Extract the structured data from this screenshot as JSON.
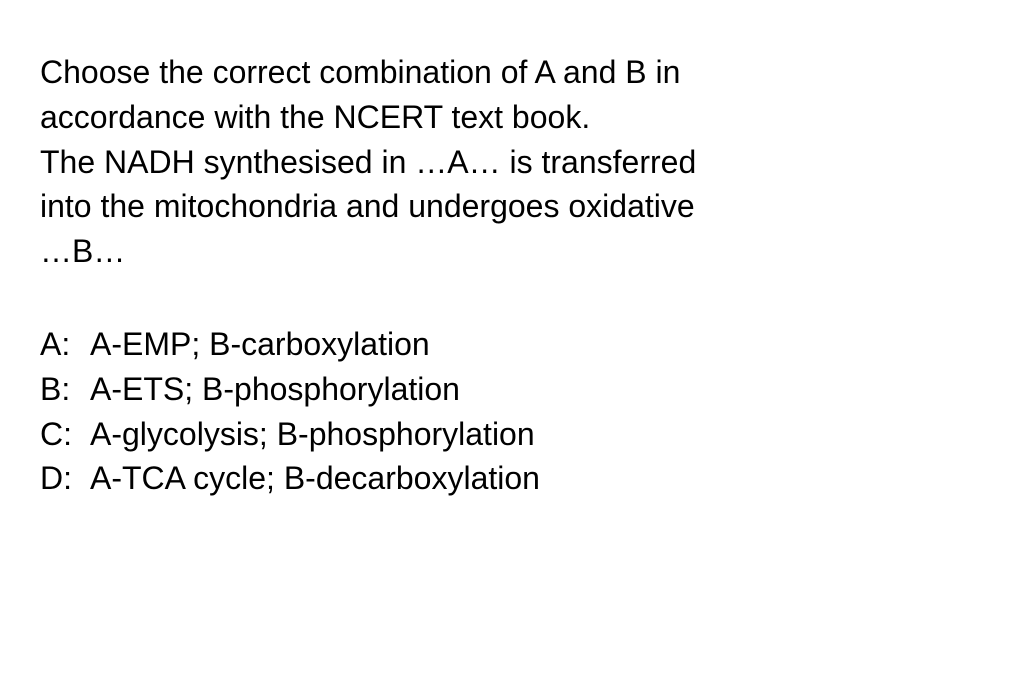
{
  "question": {
    "lines": [
      "Choose the correct combination of A and B in",
      "accordance with the NCERT text book.",
      "The NADH synthesised in …A… is transferred",
      "into the mitochondria and undergoes oxidative",
      "…B…"
    ]
  },
  "options": [
    {
      "letter": "A:",
      "text": "A-EMP; B-carboxylation"
    },
    {
      "letter": "B:",
      "text": "A-ETS; B-phosphorylation"
    },
    {
      "letter": "C:",
      "text": "A-glycolysis; B-phosphorylation"
    },
    {
      "letter": "D:",
      "text": "A-TCA cycle; B-decarboxylation"
    }
  ],
  "styling": {
    "background_color": "#ffffff",
    "text_color": "#000000",
    "font_family": "Arial, Helvetica, sans-serif",
    "question_fontsize": 32,
    "option_fontsize": 32,
    "line_height": 1.4
  }
}
